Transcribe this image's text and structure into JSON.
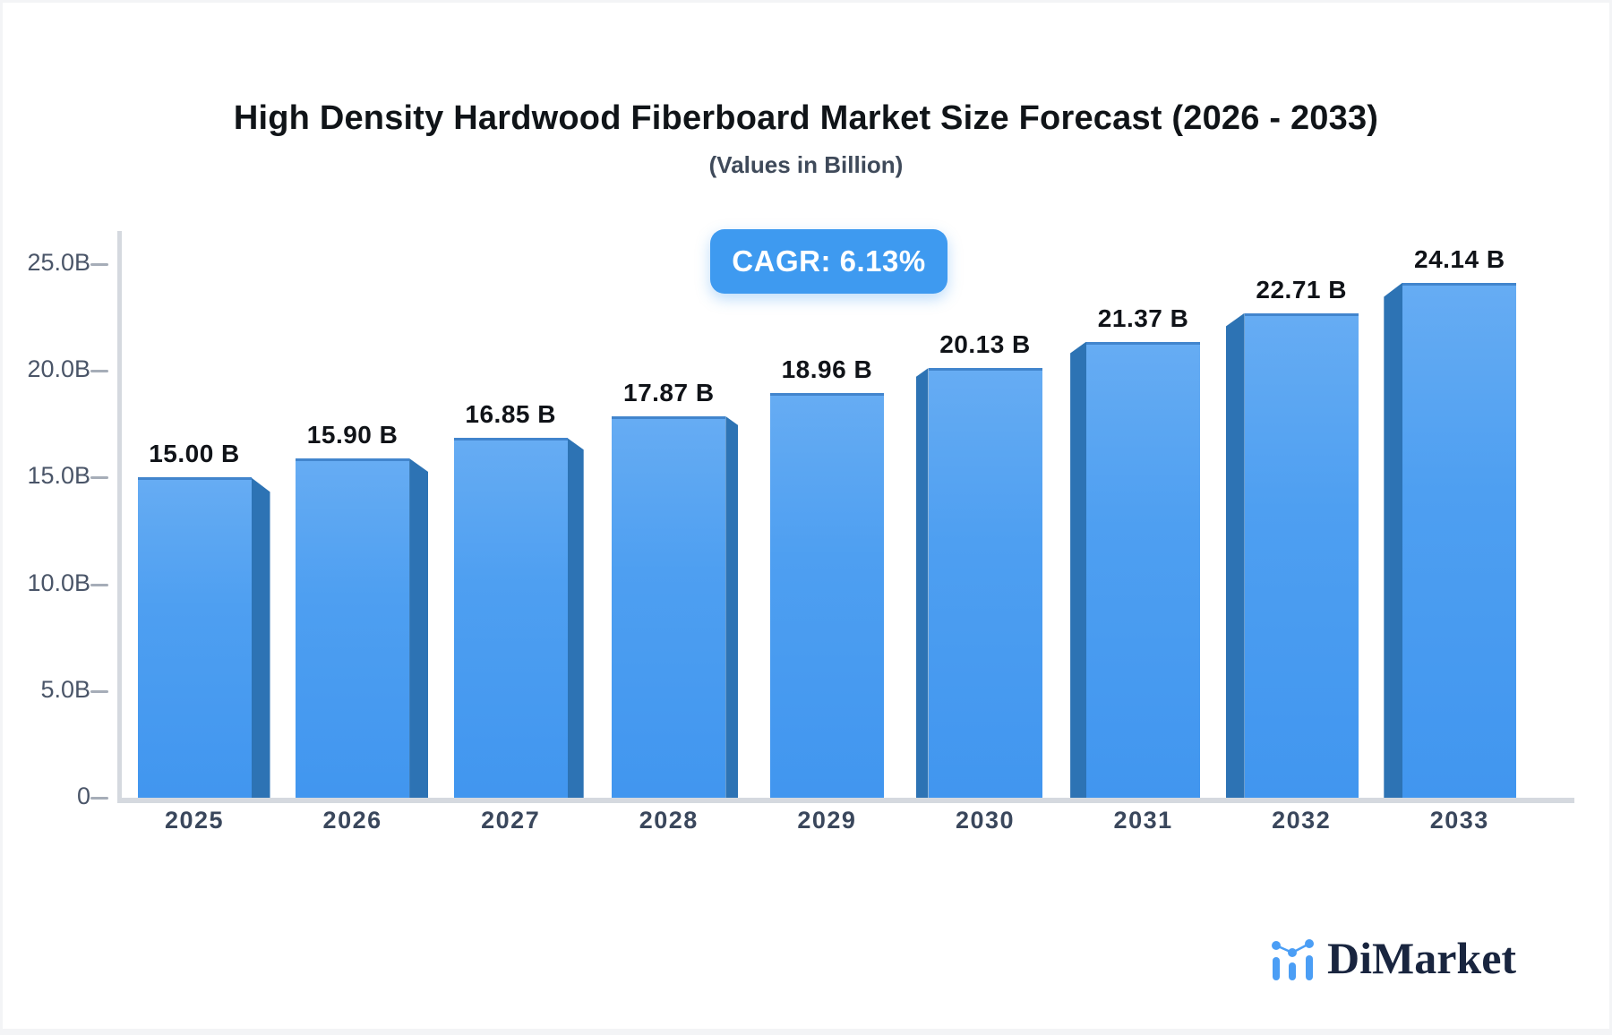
{
  "header": {
    "title": "High Density Hardwood Fiberboard Market Size Forecast (2026 - 2033)",
    "subtitle": "(Values in Billion)"
  },
  "cagr_badge": {
    "text": "CAGR: 6.13%",
    "bg_color": "#3e9af0",
    "text_color": "#ffffff"
  },
  "chart_data": {
    "type": "bar",
    "title": "High Density Hardwood Fiberboard Market Size Forecast (2026 - 2033)",
    "subtitle": "(Values in Billion)",
    "cagr_annotation": "CAGR: 6.13%",
    "categories": [
      "2025",
      "2026",
      "2027",
      "2028",
      "2029",
      "2030",
      "2031",
      "2032",
      "2033"
    ],
    "values": [
      15.0,
      15.9,
      16.85,
      17.87,
      18.96,
      20.13,
      21.37,
      22.71,
      24.14
    ],
    "value_labels": [
      "15.00 B",
      "15.90 B",
      "16.85 B",
      "17.87 B",
      "18.96 B",
      "20.13 B",
      "21.37 B",
      "22.71 B",
      "24.14 B"
    ],
    "xlabel": "",
    "ylabel": "",
    "ylim": [
      0,
      25
    ],
    "ytick_values": [
      0,
      5,
      10,
      15,
      20,
      25
    ],
    "ytick_labels": [
      "0",
      "5.0B",
      "10.0B",
      "15.0B",
      "20.0B",
      "25.0B"
    ],
    "grid": false,
    "legend": false,
    "bar_colors": {
      "face_top": "#66acf3",
      "face_bottom": "#4196ef",
      "face_top_edge": "#4285cd",
      "side_3d": "#2d73b4"
    },
    "axis_colors": {
      "axis_line": "#d5d9df",
      "tick_dash": "#a6adb8",
      "ytick_text": "#4a5568",
      "xtick_text": "#3a475c",
      "value_text": "#101318"
    }
  },
  "branding": {
    "name": "DiMarket",
    "icon": "mini-bar-line-chart",
    "text_color": "#19253f",
    "icon_color": "#4b9ef5"
  }
}
